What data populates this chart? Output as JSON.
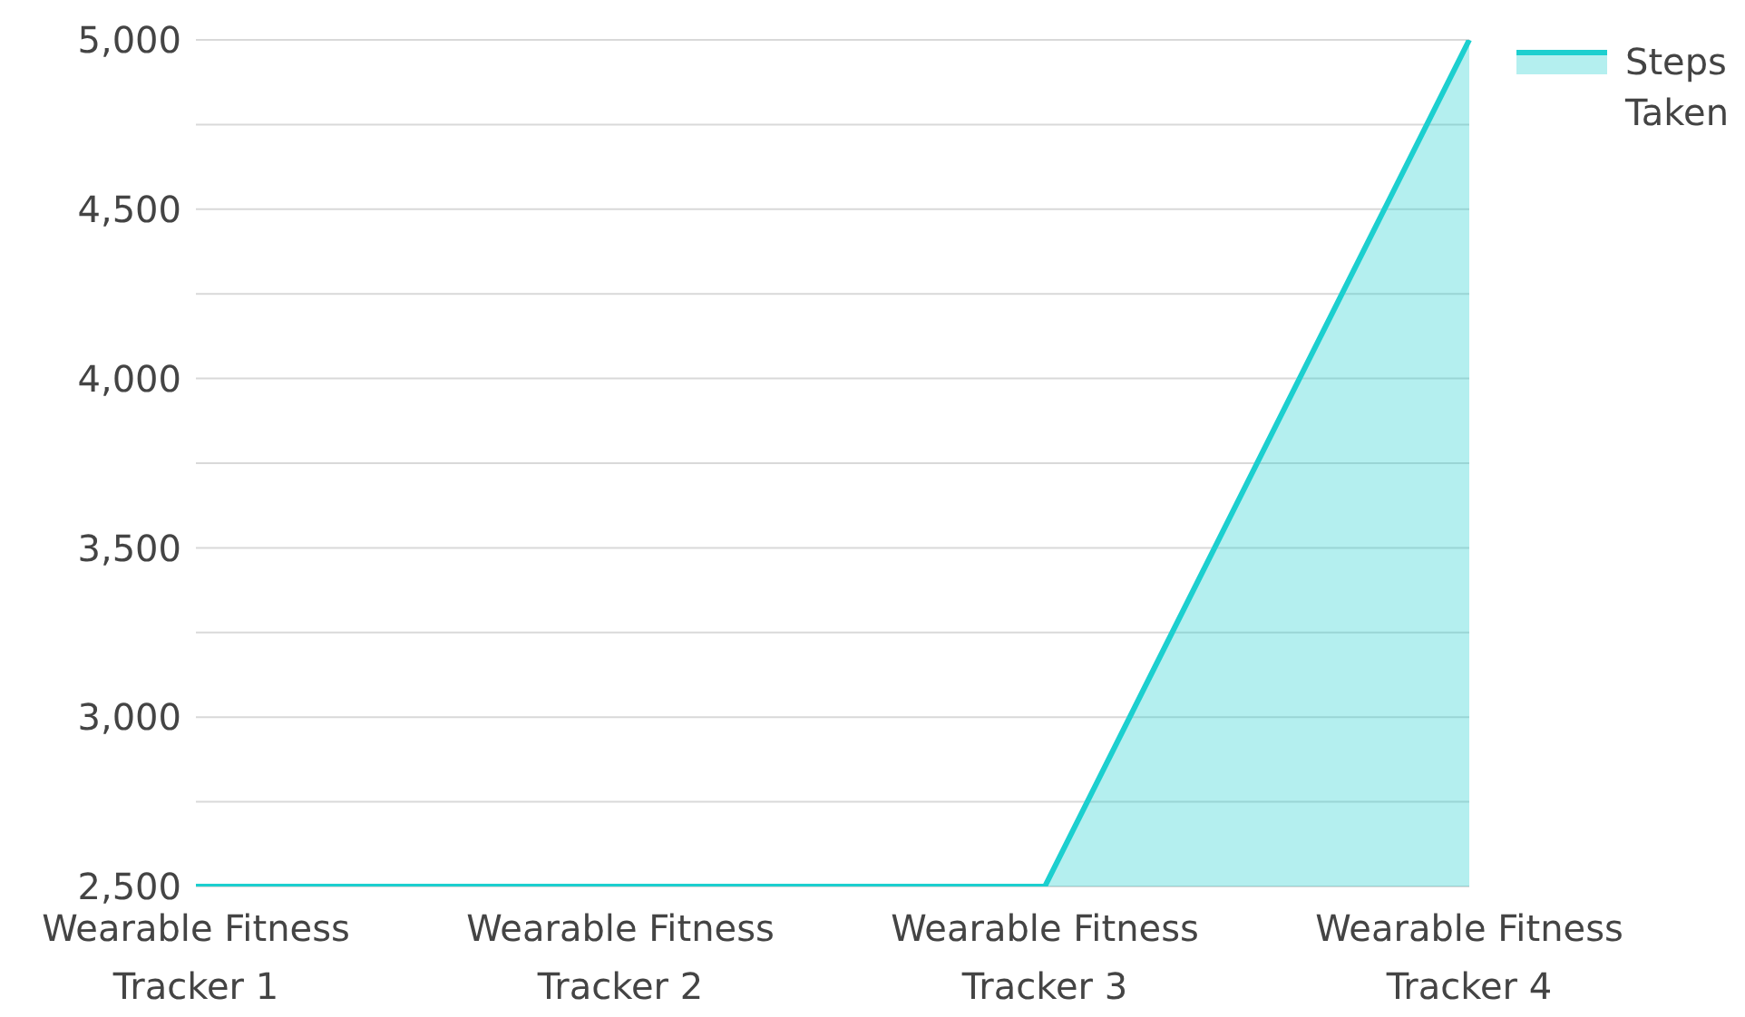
{
  "chart_data": {
    "type": "area",
    "categories": [
      "Wearable Fitness Tracker 1",
      "Wearable Fitness Tracker 2",
      "Wearable Fitness Tracker 3",
      "Wearable Fitness Tracker 4"
    ],
    "series": [
      {
        "name": "Steps Taken",
        "color": "#1ccfcf",
        "values": [
          2500,
          2500,
          2500,
          5000
        ]
      }
    ],
    "ylim": [
      2500,
      5000
    ],
    "yticks": [
      {
        "value": 2500,
        "label": "2,500"
      },
      {
        "value": 2750,
        "label": null
      },
      {
        "value": 3000,
        "label": "3,000"
      },
      {
        "value": 3250,
        "label": null
      },
      {
        "value": 3500,
        "label": "3,500"
      },
      {
        "value": 3750,
        "label": null
      },
      {
        "value": 4000,
        "label": "4,000"
      },
      {
        "value": 4250,
        "label": null
      },
      {
        "value": 4500,
        "label": "4,500"
      },
      {
        "value": 4750,
        "label": null
      },
      {
        "value": 5000,
        "label": "5,000"
      }
    ],
    "grid": "y",
    "legend": "top right"
  }
}
